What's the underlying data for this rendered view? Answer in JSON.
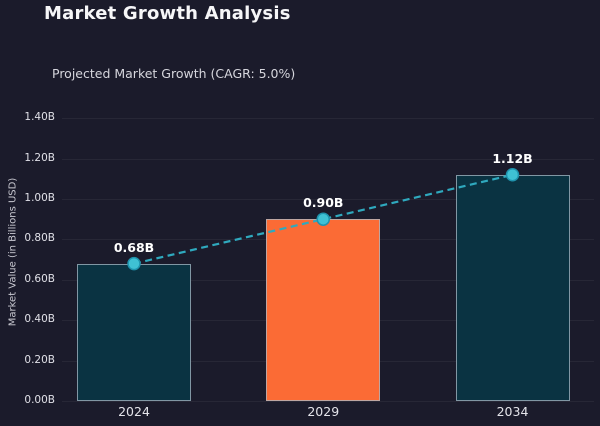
{
  "page": {
    "background_color": "#1b1b2b"
  },
  "chart_data": {
    "type": "bar",
    "title": "Market Growth Analysis",
    "subtitle": "Projected Market Growth (CAGR: 5.0%)",
    "categories": [
      "2024",
      "2029",
      "2034"
    ],
    "values": [
      0.68,
      0.9,
      1.12
    ],
    "value_labels": [
      "0.68B",
      "0.90B",
      "1.12B"
    ],
    "bar_colors": [
      "#0a3342",
      "#fb6b35",
      "#0a3342"
    ],
    "bar_border_color": "rgba(170,185,198,0.75)",
    "xlabel": "",
    "ylabel": "Market Value (in Billions USD)",
    "ylim": [
      0,
      1.4
    ],
    "ytick_values": [
      0,
      0.2,
      0.4,
      0.6,
      0.8,
      1.0,
      1.2,
      1.4
    ],
    "ytick_labels": [
      "0.00B",
      "0.20B",
      "0.40B",
      "0.60B",
      "0.80B",
      "1.00B",
      "1.20B",
      "1.40B"
    ],
    "grid": true,
    "grid_color": "rgba(255,255,255,0.055)",
    "legend_position": "none",
    "overlay_line": {
      "type": "line",
      "style": "dashed",
      "values": [
        0.68,
        0.9,
        1.12
      ],
      "color": "#2fa9be",
      "marker": "circle",
      "marker_fill": "#3fc1d4",
      "marker_stroke": "#1f93ad"
    }
  }
}
